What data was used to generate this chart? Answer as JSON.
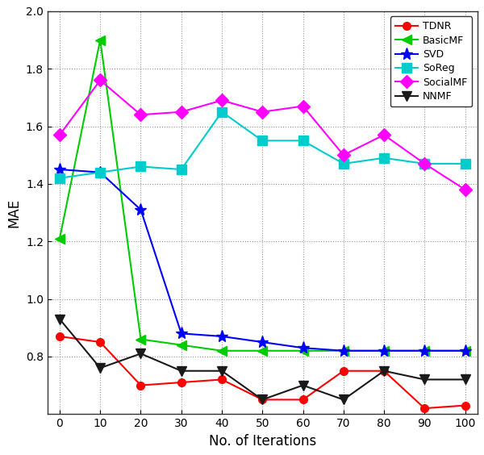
{
  "x": [
    0,
    10,
    20,
    30,
    40,
    50,
    60,
    70,
    80,
    90,
    100
  ],
  "TDNR": [
    0.87,
    0.85,
    0.7,
    0.71,
    0.72,
    0.65,
    0.65,
    0.75,
    0.75,
    0.62,
    0.63
  ],
  "BasicMF": [
    1.21,
    1.9,
    0.86,
    0.84,
    0.82,
    0.82,
    0.82,
    0.82,
    0.82,
    0.82,
    0.82
  ],
  "SVD": [
    1.45,
    1.44,
    1.31,
    0.88,
    0.87,
    0.85,
    0.83,
    0.82,
    0.82,
    0.82,
    0.82
  ],
  "SoReg": [
    1.42,
    1.44,
    1.46,
    1.45,
    1.65,
    1.55,
    1.55,
    1.47,
    1.49,
    1.47,
    1.47
  ],
  "SocialMF": [
    1.57,
    1.76,
    1.64,
    1.65,
    1.69,
    1.65,
    1.67,
    1.5,
    1.57,
    1.47,
    1.38
  ],
  "NNMF": [
    0.93,
    0.76,
    0.81,
    0.75,
    0.75,
    0.65,
    0.7,
    0.65,
    0.75,
    0.72,
    0.72
  ],
  "colors": {
    "TDNR": "#ff0000",
    "BasicMF": "#00cc00",
    "SVD": "#0000ff",
    "SoReg": "#00cccc",
    "SocialMF": "#ff00ff",
    "NNMF": "#1a1a1a"
  },
  "markers": {
    "TDNR": "o",
    "BasicMF": "<",
    "SVD": "*",
    "SoReg": "s",
    "SocialMF": "D",
    "NNMF": "v"
  },
  "series_order": [
    "TDNR",
    "BasicMF",
    "SVD",
    "SoReg",
    "SocialMF",
    "NNMF"
  ],
  "markersizes": {
    "TDNR": 7,
    "BasicMF": 8,
    "SVD": 11,
    "SoReg": 8,
    "SocialMF": 8,
    "NNMF": 8
  },
  "xlabel": "No. of Iterations",
  "ylabel": "MAE",
  "ylim": [
    0.6,
    2.0
  ],
  "xlim": [
    -3,
    103
  ],
  "xticks": [
    0,
    10,
    20,
    30,
    40,
    50,
    60,
    70,
    80,
    90,
    100
  ],
  "yticks": [
    0.8,
    1.0,
    1.2,
    1.4,
    1.6,
    1.8,
    2.0
  ],
  "bg_color": "#ffffff",
  "linewidth": 1.5,
  "grid_color": "#888888",
  "grid_linestyle": ":",
  "grid_linewidth": 0.8
}
